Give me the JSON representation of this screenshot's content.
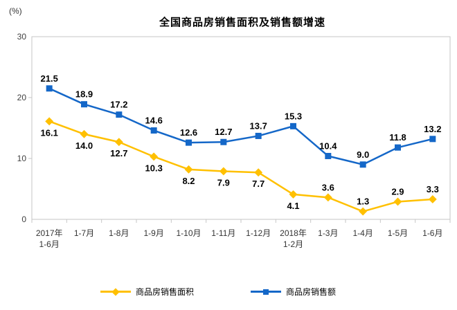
{
  "chart_data": {
    "type": "line",
    "title": "全国商品房销售面积及销售额增速",
    "y_unit_label": "(%)",
    "ylim": [
      0,
      30
    ],
    "yticks": [
      0,
      10,
      20,
      30
    ],
    "grid": false,
    "legend_position": "bottom",
    "categories": [
      [
        "2017年",
        "1-6月"
      ],
      [
        "1-7月"
      ],
      [
        "1-8月"
      ],
      [
        "1-9月"
      ],
      [
        "1-10月"
      ],
      [
        "1-11月"
      ],
      [
        "1-12月"
      ],
      [
        "2018年",
        "1-2月"
      ],
      [
        "1-3月"
      ],
      [
        "1-4月"
      ],
      [
        "1-5月"
      ],
      [
        "1-6月"
      ]
    ],
    "series": [
      {
        "name": "商品房销售面积",
        "color": "#FFC000",
        "marker": "diamond",
        "values": [
          16.1,
          14.0,
          12.7,
          10.3,
          8.2,
          7.9,
          7.7,
          4.1,
          3.6,
          1.3,
          2.9,
          3.3
        ],
        "label_positions": [
          "below",
          "below",
          "below",
          "below",
          "below",
          "below",
          "below",
          "below",
          "above",
          "above",
          "above",
          "above"
        ]
      },
      {
        "name": "商品房销售额",
        "color": "#1467C8",
        "marker": "square",
        "values": [
          21.5,
          18.9,
          17.2,
          14.6,
          12.6,
          12.7,
          13.7,
          15.3,
          10.4,
          9.0,
          11.8,
          13.2
        ],
        "label_positions": [
          "above",
          "above",
          "above",
          "above",
          "above",
          "above",
          "above",
          "above",
          "above",
          "above",
          "above",
          "above"
        ]
      }
    ],
    "axis_color": "#C6C6C6",
    "tick_label_color": "#404040",
    "category_label_color": "#333333",
    "data_label_color": "#000000"
  }
}
